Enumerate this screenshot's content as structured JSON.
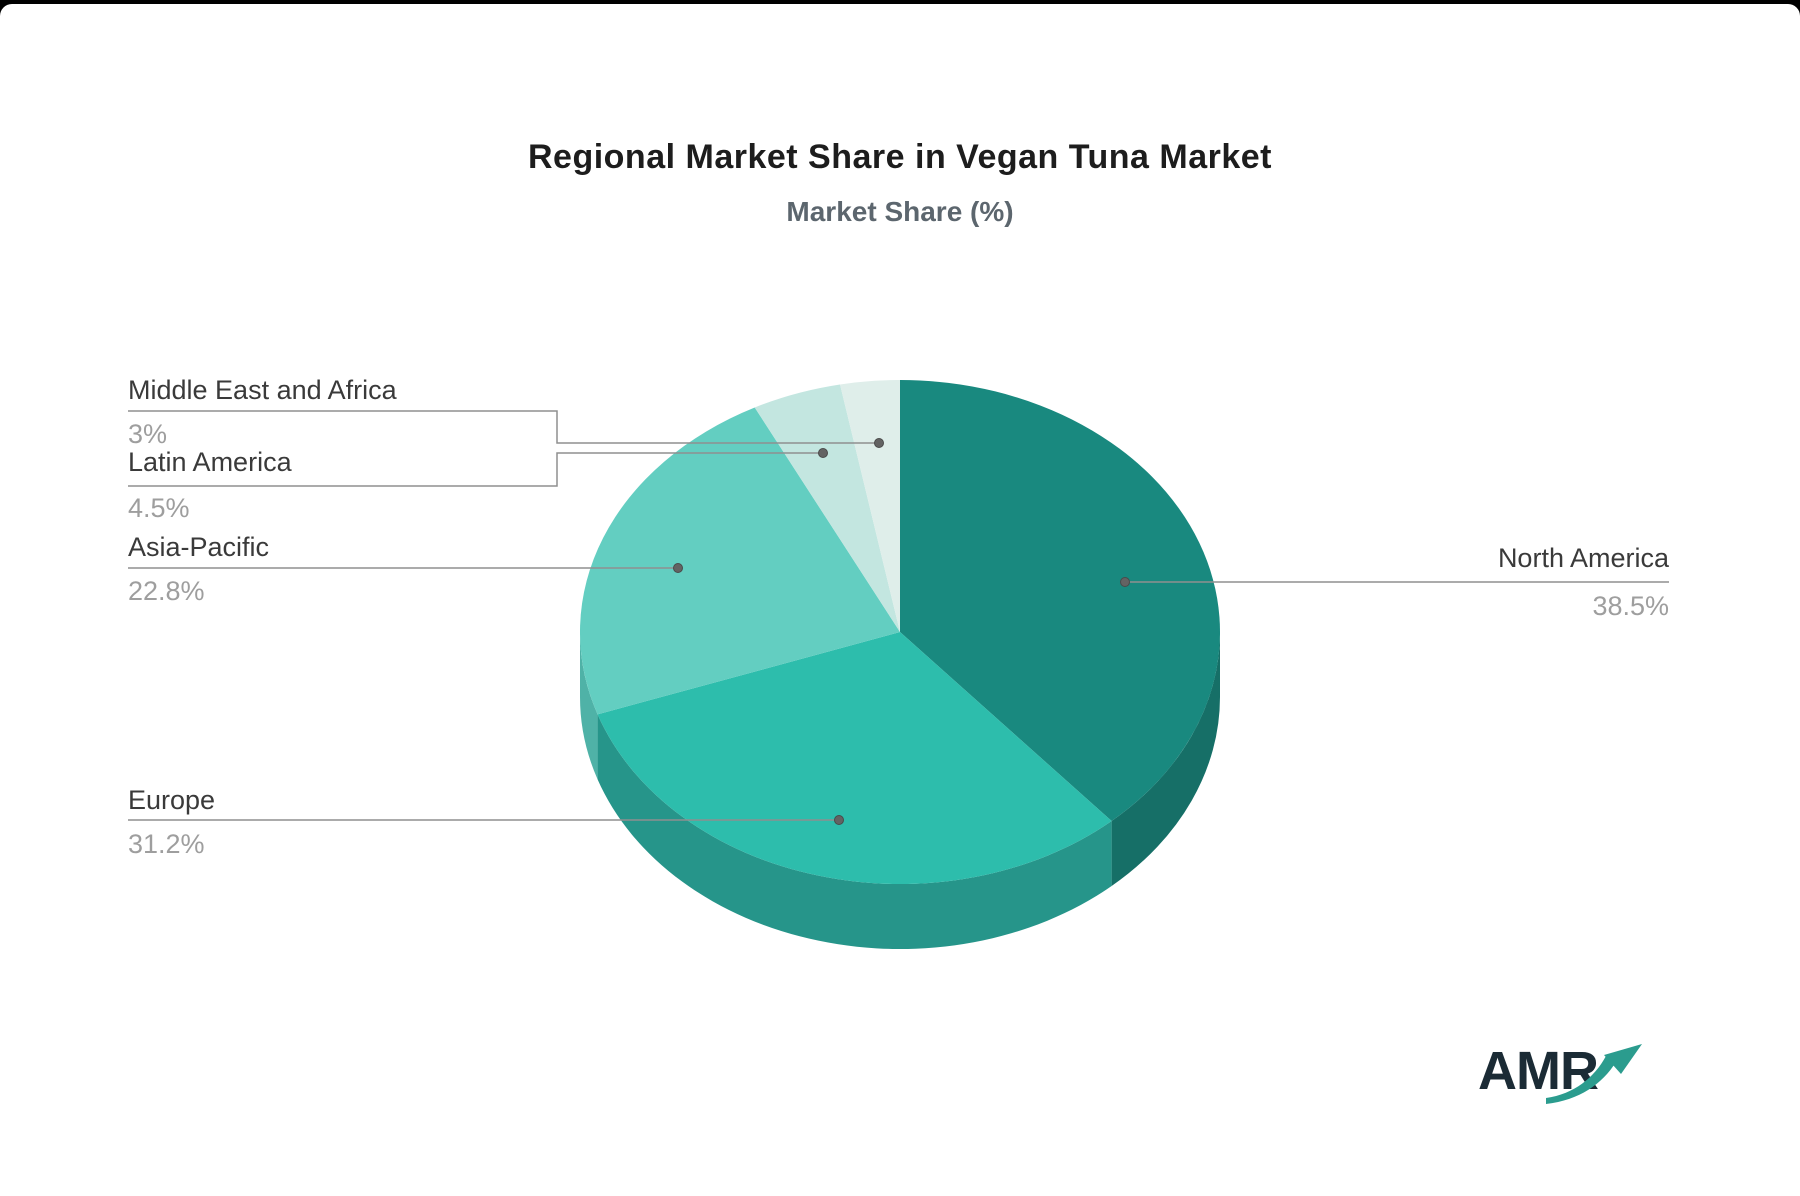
{
  "page": {
    "background": "#000000",
    "canvas_background": "#ffffff"
  },
  "header": {
    "title": "Regional Market Share in Vegan Tuna Market",
    "subtitle": "Market Share (%)"
  },
  "logo": {
    "text": "AMR",
    "text_color": "#1b2b35",
    "arrow_color": "#2b9c8e"
  },
  "leader": {
    "line_color": "#8f8f8f",
    "dot_color": "#636363",
    "dot_ring_color": "#4a4a4a"
  },
  "text_colors": {
    "label": "#3a3a3a",
    "value": "#9e9e9e",
    "title": "#1d1d1d",
    "subtitle": "#5c666e"
  },
  "chart_data": {
    "type": "pie",
    "title": "Regional Market Share in Vegan Tuna Market",
    "subtitle": "Market Share (%)",
    "unit": "%",
    "direction": "clockwise",
    "start_angle_deg": 0,
    "effect": "3d",
    "legend_position": "callout-labels",
    "slices": [
      {
        "label": "North America",
        "value": 38.5,
        "display": "38.5%",
        "color": "#19897f",
        "side_color": "#166f67"
      },
      {
        "label": "Europe",
        "value": 31.2,
        "display": "31.2%",
        "color": "#2dbdac",
        "side_color": "#26958a"
      },
      {
        "label": "Asia-Pacific",
        "value": 22.8,
        "display": "22.8%",
        "color": "#63cec1",
        "side_color": "#4fb2a7"
      },
      {
        "label": "Latin America",
        "value": 4.5,
        "display": "4.5%",
        "color": "#c3e6e0",
        "side_color": "#9fd2ca"
      },
      {
        "label": "Middle East and Africa",
        "value": 3,
        "display": "3%",
        "color": "#dfeeea",
        "side_color": "#bcd9d3"
      }
    ]
  }
}
